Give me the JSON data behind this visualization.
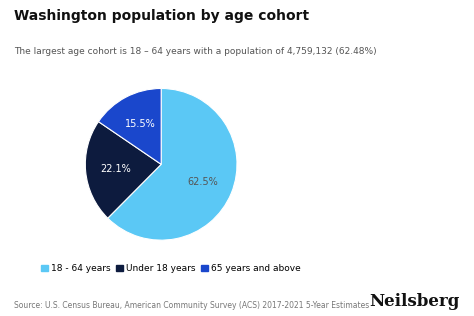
{
  "title": "Washington population by age cohort",
  "subtitle": "The largest age cohort is 18 – 64 years with a population of 4,759,132 (62.48%)",
  "slices": [
    62.5,
    22.1,
    15.5
  ],
  "labels": [
    "18 - 64 years",
    "Under 18 years",
    "65 years and above"
  ],
  "pct_labels": [
    "62.5%",
    "22.1%",
    "15.5%"
  ],
  "colors": [
    "#5bc8f5",
    "#0d1b3e",
    "#1a47cc"
  ],
  "pct_label_colors": [
    "#555555",
    "#ffffff",
    "#ffffff"
  ],
  "startangle": 90,
  "source": "Source: U.S. Census Bureau, American Community Survey (ACS) 2017-2021 5-Year Estimates",
  "brand": "Neilsberg",
  "background_color": "#ffffff",
  "title_fontsize": 10,
  "subtitle_fontsize": 6.5,
  "legend_fontsize": 6.5,
  "source_fontsize": 5.5,
  "brand_fontsize": 12
}
